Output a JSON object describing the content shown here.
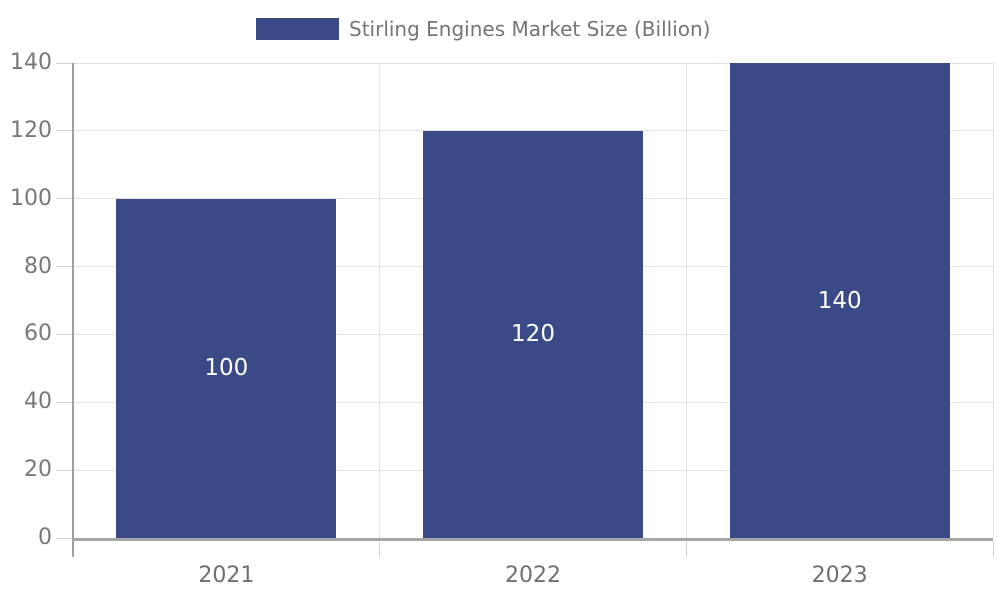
{
  "legend": {
    "label": "Stirling Engines Market Size (Billion)"
  },
  "colors": {
    "bar": "#3A4A86",
    "axis_line": "#a6a6a6",
    "gridline": "#e2e2e2",
    "tick_label": "#787878",
    "data_label": "#ffffff",
    "legend_text": "#757575"
  },
  "chart_data": {
    "type": "bar",
    "title": "Stirling Engines Market Size (Billion)",
    "categories": [
      "2021",
      "2022",
      "2023"
    ],
    "values": [
      100,
      120,
      140
    ],
    "data_labels": [
      "100",
      "120",
      "140"
    ],
    "xlabel": "",
    "ylabel": "",
    "ylim": [
      0,
      140
    ],
    "yticks": [
      0,
      20,
      40,
      60,
      80,
      100,
      120,
      140
    ],
    "grid": true,
    "legend_position": "top",
    "bar_color": "#3A4A86"
  }
}
